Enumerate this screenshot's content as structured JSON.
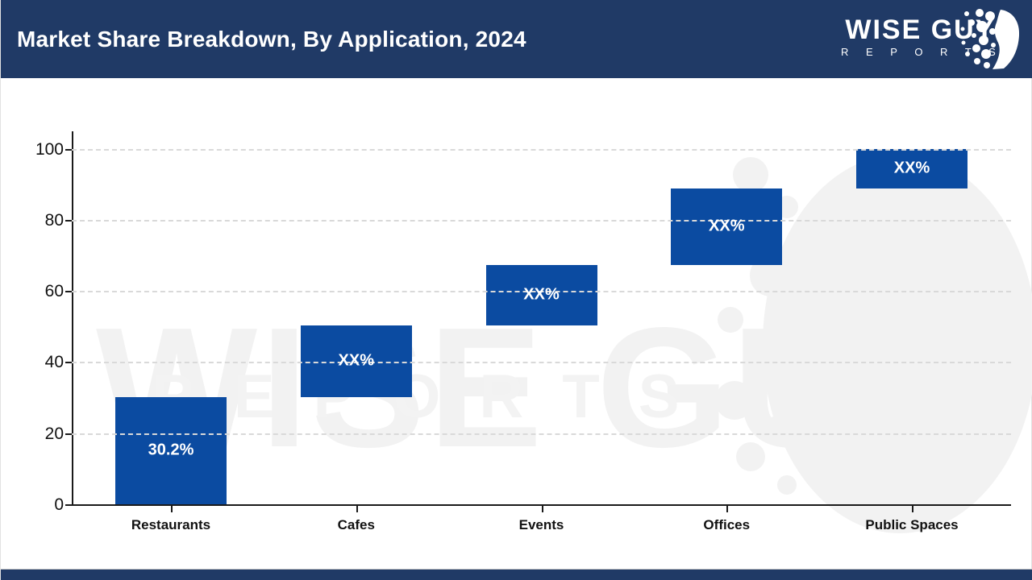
{
  "header": {
    "title": "Market Share Breakdown, By Application, 2024",
    "logo": {
      "line1": "WISE GUY",
      "line2": "R E P O R T S"
    }
  },
  "watermark": {
    "line1": "WISE GUY",
    "line2": "REPORTS"
  },
  "colors": {
    "header_bg": "#203a66",
    "bar": "#0b4ba1",
    "grid": "#d9d9d9",
    "axis": "#1a1a1a",
    "watermark": "#f2f2f2"
  },
  "chart_data": {
    "type": "bar",
    "subtype": "waterfall",
    "title": "Market Share Breakdown, By Application, 2024",
    "xlabel": "",
    "ylabel": "",
    "ylim": [
      0,
      105
    ],
    "yticks": [
      0,
      20,
      40,
      60,
      80,
      100
    ],
    "grid": "horizontal-dashed",
    "legend": "none",
    "categories": [
      "Restaurants",
      "Cafes",
      "Events",
      "Offices",
      "Public Spaces"
    ],
    "bars": [
      {
        "category": "Restaurants",
        "start": 0,
        "end": 30.2,
        "label": "30.2%"
      },
      {
        "category": "Cafes",
        "start": 30.2,
        "end": 50.4,
        "label": "XX%"
      },
      {
        "category": "Events",
        "start": 50.4,
        "end": 67.4,
        "label": "XX%"
      },
      {
        "category": "Offices",
        "start": 67.4,
        "end": 88.9,
        "label": "XX%"
      },
      {
        "category": "Public Spaces",
        "start": 88.9,
        "end": 100,
        "label": "XX%"
      }
    ]
  }
}
